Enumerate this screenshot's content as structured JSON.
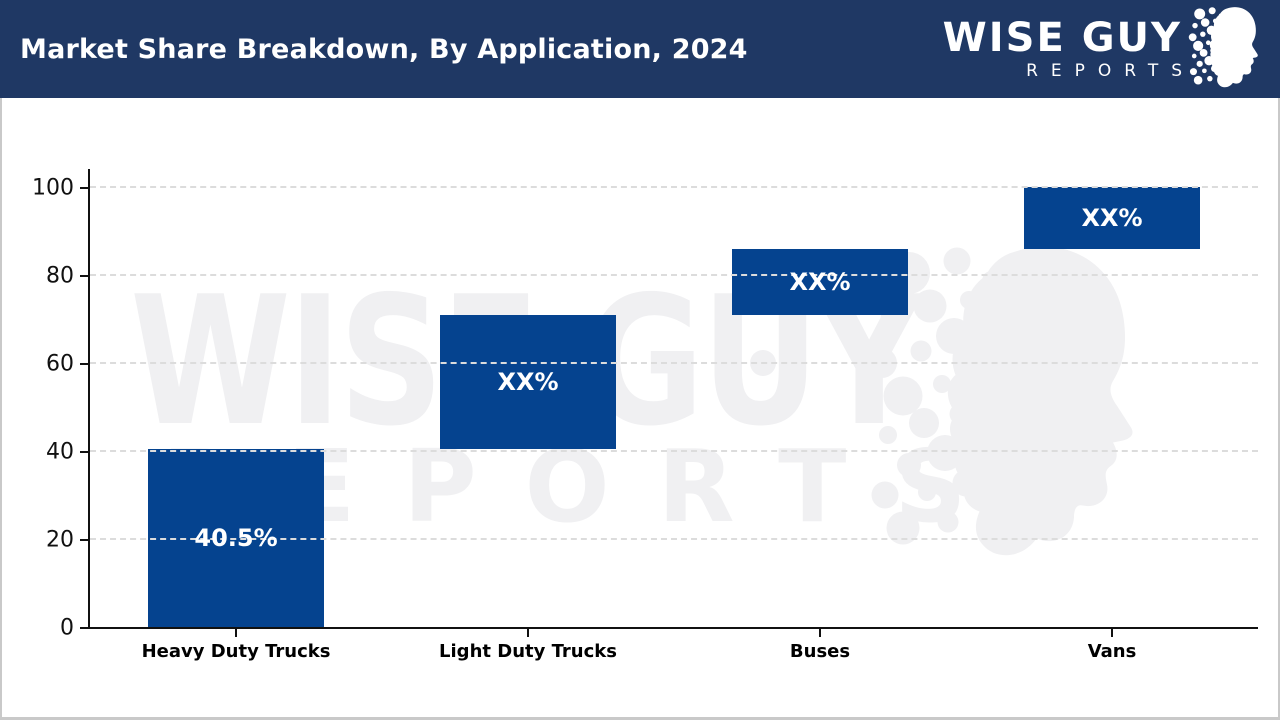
{
  "header": {
    "title": "Market Share Breakdown, By Application, 2024"
  },
  "logo": {
    "line1": "WISE GUY",
    "line2": "REPORTS"
  },
  "watermark": {
    "line1": "WISE GUY",
    "line2": "REPORTS"
  },
  "colors": {
    "header_navy": "#1f3864",
    "bar_blue": "#05438f",
    "grid_gray": "#dcdcdc",
    "watermark_gray": "#f0f0f2",
    "axis_black": "#111111",
    "label_white": "#ffffff"
  },
  "chart_data": {
    "type": "bar",
    "subtype": "waterfall-stacked-percent",
    "title": "Market Share Breakdown, By Application, 2024",
    "categories": [
      "Heavy Duty Trucks",
      "Light Duty Trucks",
      "Buses",
      "Vans"
    ],
    "segments": [
      [
        0,
        40.5
      ],
      [
        40.5,
        71
      ],
      [
        71,
        86
      ],
      [
        86,
        100
      ]
    ],
    "bar_labels": [
      "40.5%",
      "XX%",
      "XX%",
      "XX%"
    ],
    "values_shown": {
      "Heavy Duty Trucks": "40.5%",
      "Light Duty Trucks": "XX%",
      "Buses": "XX%",
      "Vans": "XX%"
    },
    "xlabel": "",
    "ylabel": "",
    "ylim": [
      0,
      100
    ],
    "yticks": [
      0,
      20,
      40,
      60,
      80,
      100
    ],
    "grid": "dashed-horizontal-above-bars",
    "legend": "none",
    "bar_color": "#05438f"
  }
}
